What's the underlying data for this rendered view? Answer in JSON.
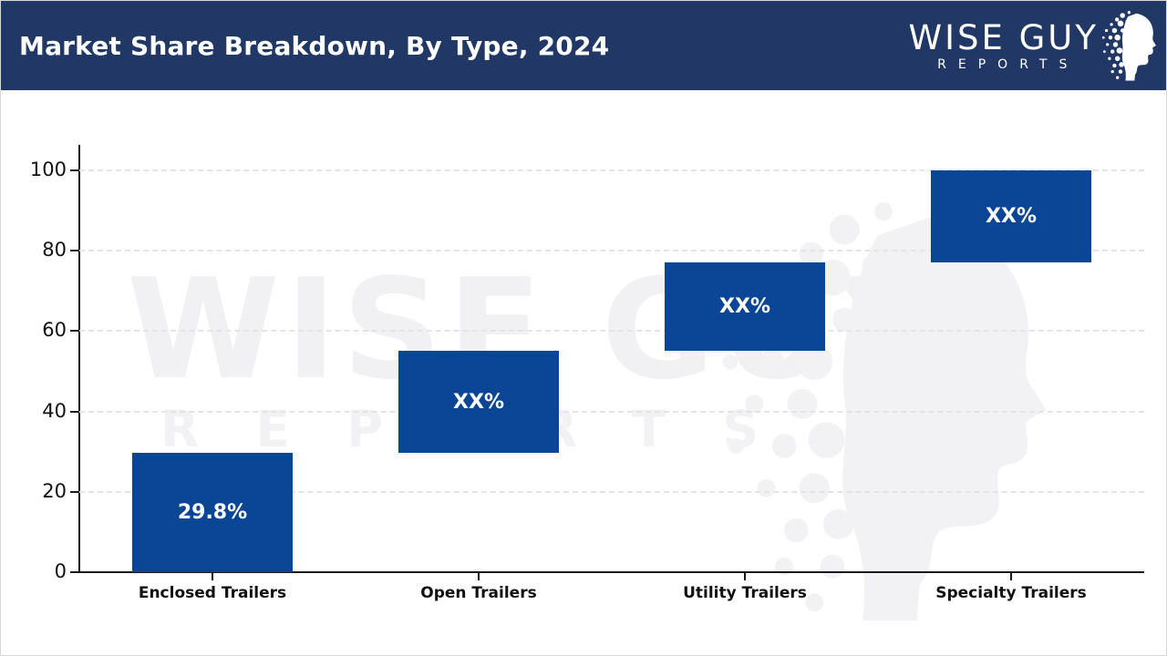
{
  "header": {
    "title": "Market Share Breakdown, By Type, 2024"
  },
  "logo": {
    "line1": "WISE GUY",
    "line2": "REPORTS",
    "face_icon": "dotted-face-profile-icon"
  },
  "watermark": {
    "line1": "WISE GUY",
    "line2": "REPORTS",
    "face_icon": "dotted-face-profile-icon"
  },
  "colors": {
    "header_bg": "#213765",
    "bar": "#0b4596",
    "bar_label": "#ffffff",
    "grid": "#e4e4e5",
    "axis": "#1a1a1a",
    "watermark": "#f1f1f3"
  },
  "chart_data": {
    "type": "bar",
    "subtype": "waterfall",
    "title": "Market Share Breakdown, By Type, 2024",
    "categories": [
      "Enclosed Trailers",
      "Open Trailers",
      "Utility Trailers",
      "Specialty Trailers"
    ],
    "segments": [
      {
        "category": "Enclosed Trailers",
        "start": 0,
        "end": 29.8,
        "value": 29.8,
        "label": "29.8%"
      },
      {
        "category": "Open Trailers",
        "start": 29.8,
        "end": 55,
        "value": 25.2,
        "label": "XX%"
      },
      {
        "category": "Utility Trailers",
        "start": 55,
        "end": 77,
        "value": 22,
        "label": "XX%"
      },
      {
        "category": "Specialty Trailers",
        "start": 77,
        "end": 100,
        "value": 23,
        "label": "XX%"
      }
    ],
    "yticks": [
      0,
      20,
      40,
      60,
      80,
      100
    ],
    "ylim": [
      0,
      106
    ],
    "xlabel": "",
    "ylabel": "",
    "grid": "horizontal-dashed",
    "legend": "none",
    "bar_color": "#0b4596",
    "label_color": "#ffffff"
  }
}
